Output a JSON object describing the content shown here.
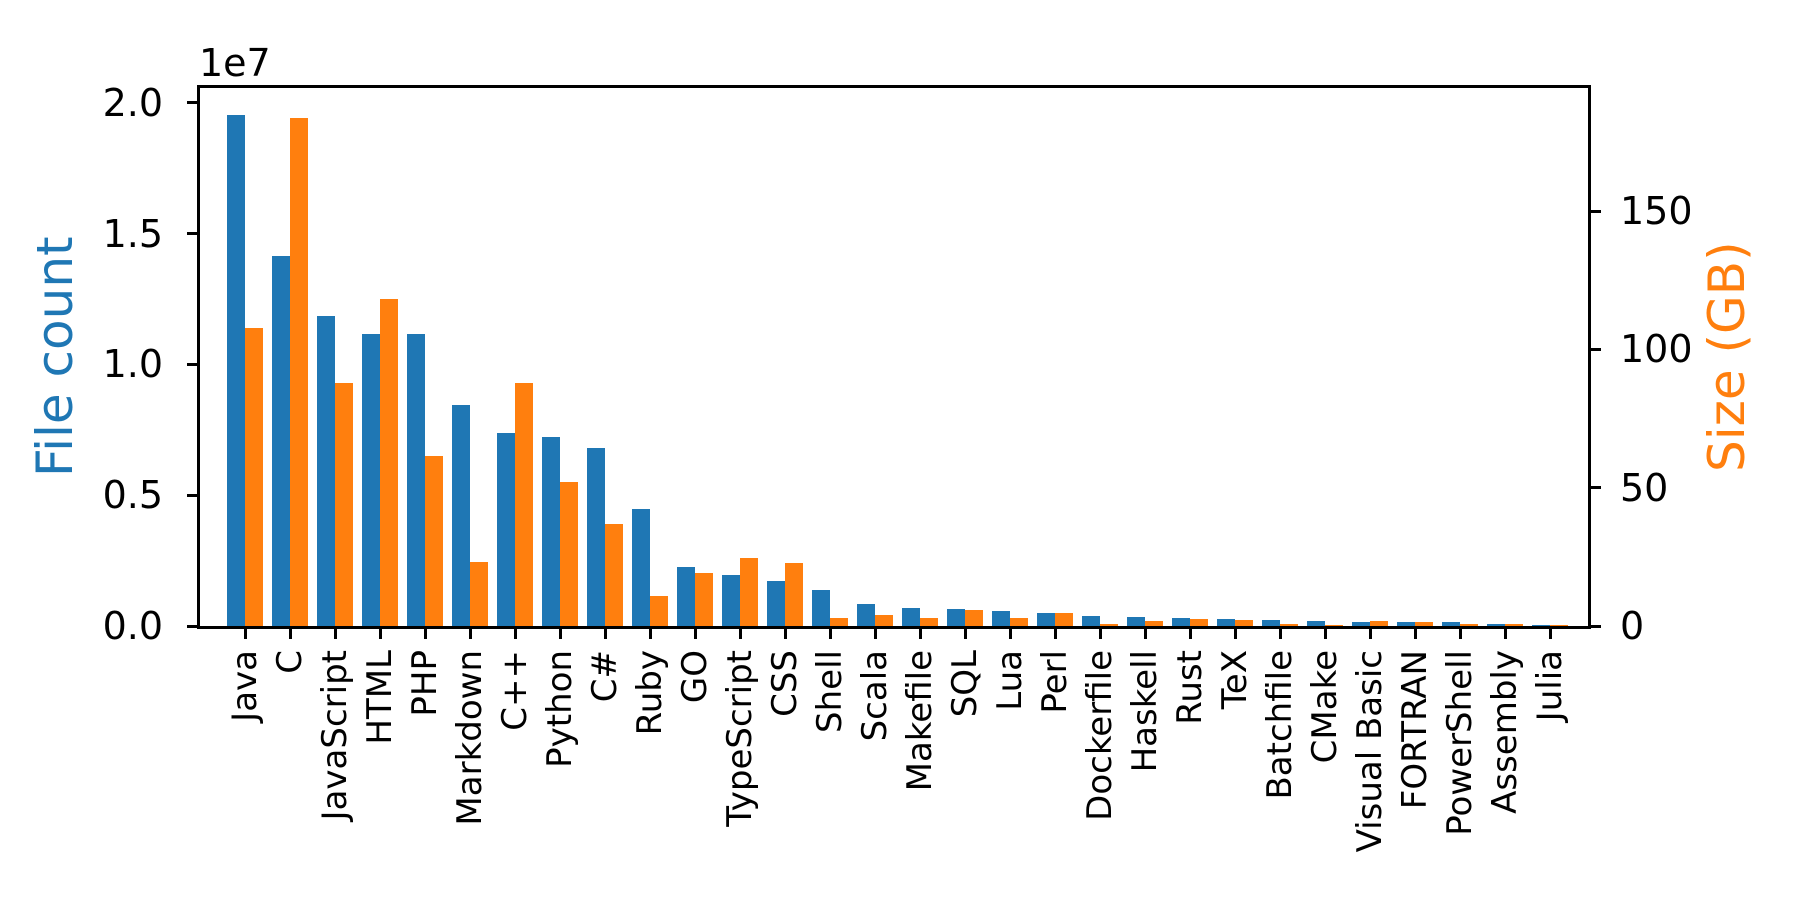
{
  "chart_data": {
    "type": "bar",
    "title": "",
    "subtitle": "",
    "grid": false,
    "legend_position": "none",
    "bar_layout": "grouped-dual-axis",
    "categories": [
      "Java",
      "C",
      "JavaScript",
      "HTML",
      "PHP",
      "Markdown",
      "C++",
      "Python",
      "C#",
      "Ruby",
      "GO",
      "TypeScript",
      "CSS",
      "Shell",
      "Scala",
      "Makefile",
      "SQL",
      "Lua",
      "Perl",
      "Dockerfile",
      "Haskell",
      "Rust",
      "TeX",
      "Batchfile",
      "CMake",
      "Visual Basic",
      "FORTRAN",
      "PowerShell",
      "Assembly",
      "Julia"
    ],
    "series": [
      {
        "name": "File count",
        "axis": "left",
        "color": "#1f77b4",
        "values": [
          19548190,
          14143113,
          11839883,
          11178557,
          11177610,
          8464626,
          7380520,
          7226626,
          6811652,
          4473331,
          2265436,
          1940406,
          1734406,
          1385648,
          835755,
          679430,
          656671,
          578554,
          497949,
          366505,
          340623,
          322431,
          251015,
          236945,
          175282,
          155652,
          142038,
          136846,
          82905,
          58317
        ]
      },
      {
        "name": "Size (GB)",
        "axis": "right",
        "color": "#ff7f0e",
        "values": [
          107.7,
          183.83,
          87.82,
          118.12,
          61.41,
          23.09,
          87.73,
          52.03,
          36.83,
          10.95,
          19.28,
          24.59,
          22.67,
          3.01,
          3.87,
          2.92,
          5.67,
          2.81,
          4.7,
          0.71,
          1.85,
          2.68,
          2.15,
          0.7,
          0.54,
          1.91,
          1.62,
          0.69,
          0.78,
          0.29
        ]
      }
    ],
    "left_axis": {
      "label": "File count",
      "color": "#1f77b4",
      "offset_label": "1e7",
      "tick_labels": [
        "0.0",
        "0.5",
        "1.0",
        "1.5",
        "2.0"
      ],
      "tick_values": [
        0,
        5000000,
        10000000,
        15000000,
        20000000
      ],
      "range": [
        0,
        20566000
      ]
    },
    "right_axis": {
      "label": "Size (GB)",
      "color": "#ff7f0e",
      "tick_labels": [
        "0",
        "50",
        "100",
        "150"
      ],
      "tick_values": [
        0,
        50,
        100,
        150
      ],
      "range": [
        0,
        194.5
      ]
    }
  }
}
